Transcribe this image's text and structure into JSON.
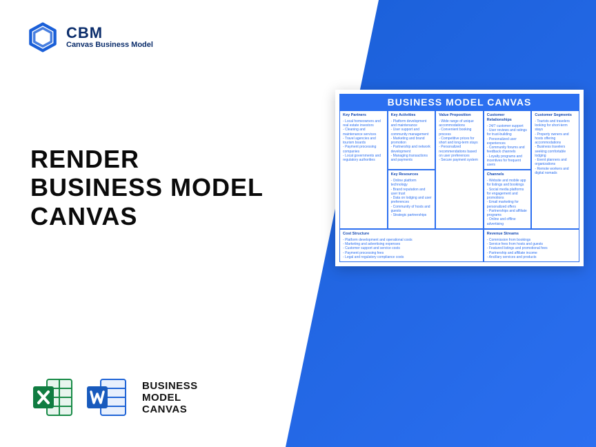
{
  "brand": {
    "abbr": "CBM",
    "name": "Canvas Business Model",
    "logo_color": "#1a5fd8"
  },
  "headline": {
    "l1": "RENDER",
    "l2": "BUSINESS MODEL",
    "l3": "CANVAS"
  },
  "icons_label": {
    "l1": "BUSINESS",
    "l2": "MODEL",
    "l3": "CANVAS"
  },
  "accent_gradient": {
    "from": "#1a5fd8",
    "to": "#2b6ff0"
  },
  "canvas": {
    "title": "BUSINESS MODEL CANVAS",
    "title_bg": "#2b6ff0",
    "text_color": "#2b6ff0",
    "border_color": "#2b6ff0",
    "sections": {
      "key_partners": {
        "title": "Key Partners",
        "items": [
          "Local homeowners and real estate investors",
          "Cleaning and maintenance services",
          "Travel agencies and tourism boards",
          "Payment processing companies",
          "Local governments and regulatory authorities"
        ]
      },
      "key_activities": {
        "title": "Key Activities",
        "items": [
          "Platform development and maintenance",
          "User support and community management",
          "Marketing and brand promotion",
          "Partnership and network development",
          "Managing transactions and payments"
        ]
      },
      "key_resources": {
        "title": "Key Resources",
        "items": [
          "Online platform technology",
          "Brand reputation and user trust",
          "Data on lodging and user preferences",
          "Community of hosts and guests",
          "Strategic partnerships"
        ]
      },
      "value_proposition": {
        "title": "Value Proposition",
        "items": [
          "Wide range of unique accommodations",
          "Convenient booking process",
          "Competitive prices for short and long-term stays",
          "Personalized recommendations based on user preferences",
          "Secure payment system"
        ]
      },
      "customer_relationships": {
        "title": "Customer Relationships",
        "items": [
          "24/7 customer support",
          "User reviews and ratings for trust-building",
          "Personalized user experiences",
          "Community forums and feedback channels",
          "Loyalty programs and incentives for frequent users"
        ]
      },
      "channels": {
        "title": "Channels",
        "items": [
          "Website and mobile app for listings and bookings",
          "Social media platforms for engagement and promotions",
          "Email marketing for personalized offers",
          "Partnerships and affiliate programs",
          "Online and offline advertising"
        ]
      },
      "customer_segments": {
        "title": "Customer Segments",
        "items": [
          "Tourists and travelers looking for short-term stays",
          "Property owners and hosts offering accommodations",
          "Business travelers seeking comfortable lodging",
          "Event planners and organizations",
          "Remote workers and digital nomads"
        ]
      },
      "cost_structure": {
        "title": "Cost Structure",
        "items": [
          "Platform development and operational costs",
          "Marketing and advertising expenses",
          "Customer support and service costs",
          "Payment processing fees",
          "Legal and regulatory compliance costs"
        ]
      },
      "revenue_streams": {
        "title": "Revenue Streams",
        "items": [
          "Commission from bookings",
          "Service fees from hosts and guests",
          "Featured listings and promotional fees",
          "Partnership and affiliate income",
          "Ancillary services and products"
        ]
      }
    }
  }
}
